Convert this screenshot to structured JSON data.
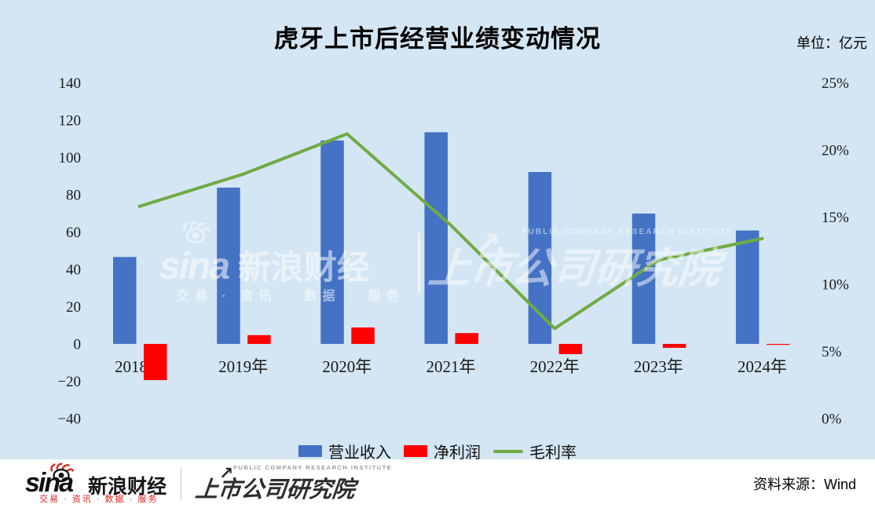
{
  "header": {
    "title": "虎牙上市后经营业绩变动情况",
    "unit_label": "单位：亿元"
  },
  "chart_data": {
    "type": "bar",
    "subtype": "grouped bars with secondary-axis line",
    "categories": [
      "2018年",
      "2019年",
      "2020年",
      "2021年",
      "2022年",
      "2023年",
      "2024年"
    ],
    "series": [
      {
        "name": "营业收入",
        "type": "bar",
        "axis": "left",
        "color": "#4472c4",
        "values": [
          46.6,
          83.8,
          109.1,
          113.5,
          92.2,
          69.9,
          60.8
        ]
      },
      {
        "name": "净利润",
        "type": "bar",
        "axis": "left",
        "color": "#ff0000",
        "values": [
          -19.4,
          4.7,
          8.8,
          5.8,
          -5.5,
          -2.1,
          -0.5
        ]
      },
      {
        "name": "毛利率",
        "type": "line",
        "axis": "right",
        "color": "#6fab44",
        "values": [
          15.8,
          18.2,
          21.2,
          14.4,
          6.7,
          11.8,
          13.4
        ]
      }
    ],
    "left_axis": {
      "min": -40,
      "max": 140,
      "step": 20,
      "ticks": [
        {
          "label": "140",
          "value": 140
        },
        {
          "label": "120",
          "value": 120
        },
        {
          "label": "100",
          "value": 100
        },
        {
          "label": "80",
          "value": 80
        },
        {
          "label": "60",
          "value": 60
        },
        {
          "label": "40",
          "value": 40
        },
        {
          "label": "20",
          "value": 20
        },
        {
          "label": "0",
          "value": 0
        },
        {
          "label": "−20",
          "value": -20
        },
        {
          "label": "−40",
          "value": -40
        }
      ]
    },
    "right_axis": {
      "min": 0,
      "max": 25,
      "ticks": [
        {
          "label": "25%",
          "value": 25
        },
        {
          "label": "20%",
          "value": 20
        },
        {
          "label": "15%",
          "value": 15
        },
        {
          "label": "10%",
          "value": 10
        },
        {
          "label": "5%",
          "value": 5
        },
        {
          "label": "0%",
          "value": 0
        }
      ]
    },
    "grid": "zero-line-only",
    "legend_position": "bottom"
  },
  "watermarks": {
    "sina_latin": "sina",
    "sina_cn": "新浪财经",
    "sina_tagline": "交易 · 资讯 · 数据 · 服务",
    "inst_en": "PUBLIC COMPANY RESEARCH INSTITUTE",
    "inst_cn": "上市公司研究院",
    "arrow_glyph": "↗"
  },
  "footer": {
    "sina_latin": "sina",
    "sina_cn": "新浪财经",
    "sina_tagline": "交易 · 资讯 · 数据 · 服务",
    "inst_en": "PUBLIC COMPANY RESEARCH INSTITUTE",
    "inst_cn": "上市公司研究院",
    "arrow_glyph": "↗",
    "source": "资料来源：Wind"
  }
}
